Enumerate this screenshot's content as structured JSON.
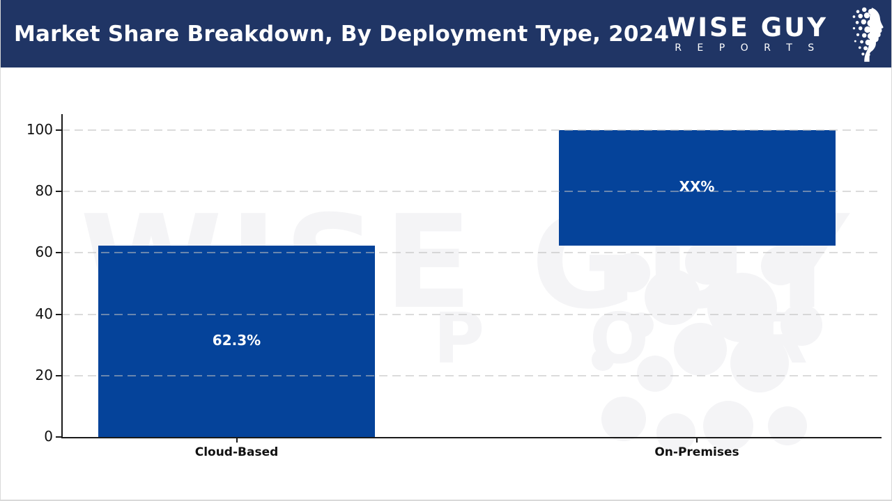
{
  "header": {
    "title": "Market Share Breakdown, By Deployment Type, 2024",
    "logo": {
      "brand_line1": "WISE GUY",
      "brand_line2": "R E P O R T S",
      "head_icon": "dotted-face-profile"
    }
  },
  "watermark": {
    "line1": "WISE GUY",
    "line2": "R E P O R T S"
  },
  "colors": {
    "header_bg": "#203565",
    "header_text": "#ffffff",
    "bar_fill": "#05439a",
    "bar_label_text": "#ffffff",
    "grid_line": "#dcdcdc",
    "axis_line": "#1a1a1a",
    "tick_text": "#111111",
    "watermark_text": "#f4f4f6"
  },
  "chart_data": {
    "type": "bar",
    "title": "Market Share Breakdown, By Deployment Type, 2024",
    "unit": "%",
    "categories": [
      "Cloud-Based",
      "On-Premises"
    ],
    "series": [
      {
        "name": "Market Share",
        "bars": [
          {
            "category": "Cloud-Based",
            "from": 0,
            "to": 62.3,
            "label": "62.3%"
          },
          {
            "category": "On-Premises",
            "from": 62.3,
            "to": 100,
            "label": "XX%"
          }
        ]
      }
    ],
    "values": [
      62.3,
      37.7
    ],
    "yticks": [
      0,
      20,
      40,
      60,
      80,
      100
    ],
    "ylim": [
      0,
      105
    ],
    "xlabel": "",
    "ylabel": "",
    "grid": "horizontal-dashed",
    "legend": "none",
    "bar_style": "On-Premises bar is a floating segment stacked from 62.3 to 100; its value label is the placeholder XX%"
  }
}
